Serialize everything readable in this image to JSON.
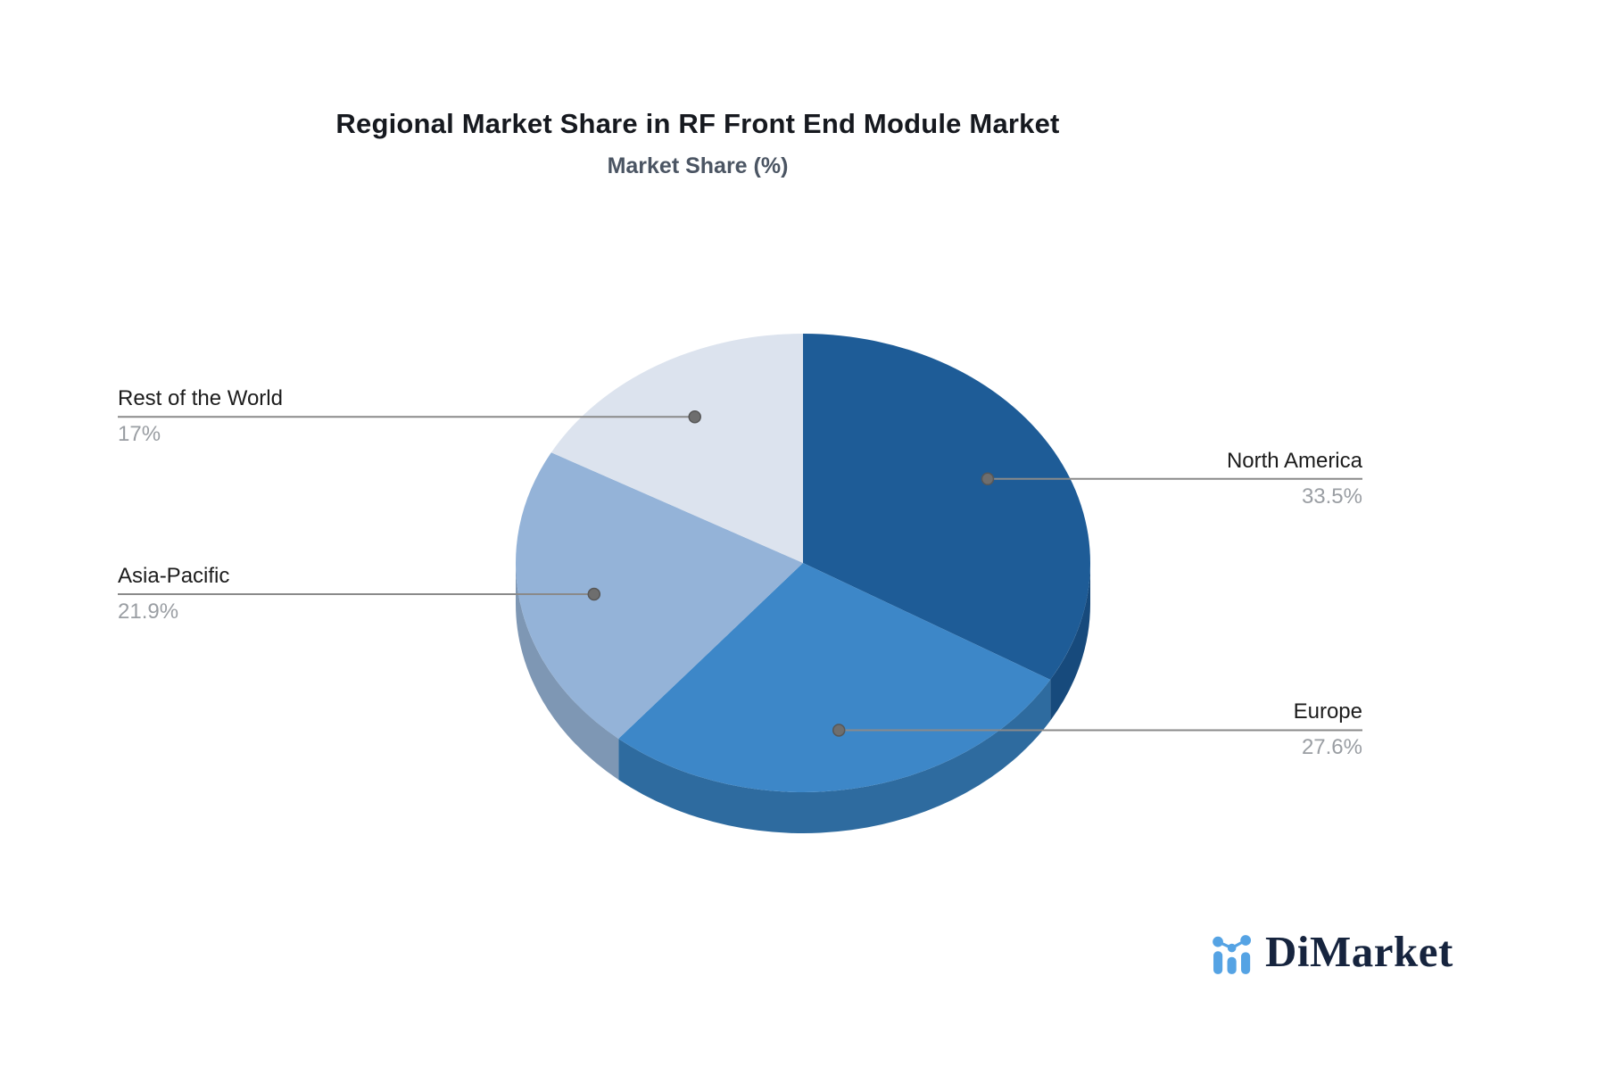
{
  "chart_data": {
    "type": "pie",
    "style_3d": true,
    "start_angle": "top",
    "direction": "clockwise",
    "title": "Regional Market Share in RF Front End Module Market",
    "subtitle": "Market Share (%)",
    "unit": "%",
    "slices": [
      {
        "label": "North America",
        "value": 33.5,
        "display_value": "33.5%",
        "color": "#1e5c97",
        "side_color": "#174a7c",
        "label_side": "right"
      },
      {
        "label": "Europe",
        "value": 27.6,
        "display_value": "27.6%",
        "color": "#3d87c8",
        "side_color": "#2e6b9f",
        "label_side": "right"
      },
      {
        "label": "Asia-Pacific",
        "value": 21.9,
        "display_value": "21.9%",
        "color": "#94b3d8",
        "side_color": "#7e97b4",
        "label_side": "left"
      },
      {
        "label": "Rest of the World",
        "value": 17,
        "display_value": "17%",
        "color": "#dce3ee",
        "side_color": "#b9c3d4",
        "label_side": "left"
      }
    ],
    "label_text_color": "#1c1c1c",
    "value_text_color": "#9a9ea3",
    "leader_line_color": "#8a8a8a",
    "leader_dot_color": "#6e6e6e"
  },
  "branding": {
    "logo_text": "DiMarket",
    "logo_icon": "bar-line-chart-icon",
    "icon_color": "#55a3e4",
    "text_color": "#16243e"
  }
}
